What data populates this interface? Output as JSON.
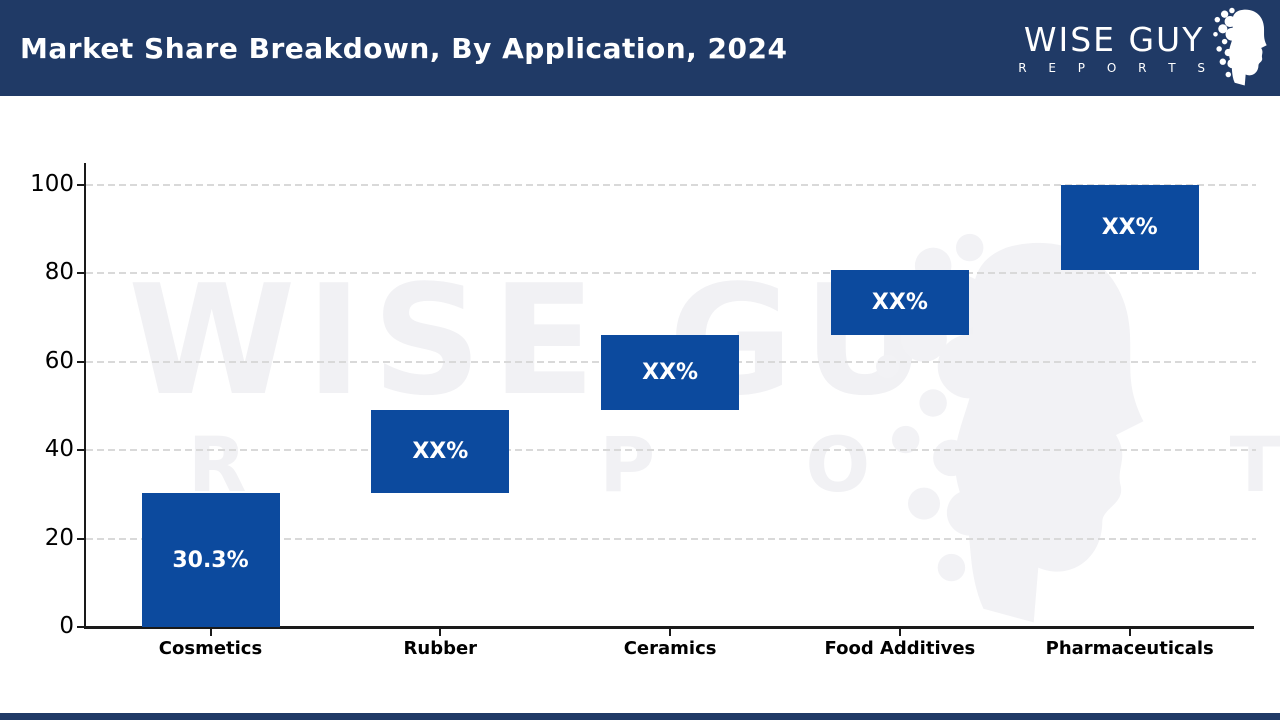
{
  "header": {
    "title": "Market Share Breakdown, By Application, 2024",
    "background_color": "#203a66",
    "logo": {
      "name": "WISE GUY",
      "tagline": "R E P O R T S",
      "icon": "dotted-face-profile-icon"
    }
  },
  "chart_data": {
    "type": "bar",
    "variant": "waterfall",
    "title": "Market Share Breakdown, By Application, 2024",
    "categories": [
      "Cosmetics",
      "Rubber",
      "Ceramics",
      "Food Additives",
      "Pharmaceuticals"
    ],
    "series": [
      {
        "name": "Market Share",
        "segments": [
          {
            "category": "Cosmetics",
            "start": 0,
            "end": 30.3,
            "label": "30.3%"
          },
          {
            "category": "Rubber",
            "start": 30.3,
            "end": 49.0,
            "label": "XX%"
          },
          {
            "category": "Ceramics",
            "start": 49.0,
            "end": 66.0,
            "label": "XX%"
          },
          {
            "category": "Food Additives",
            "start": 66.0,
            "end": 80.7,
            "label": "XX%"
          },
          {
            "category": "Pharmaceuticals",
            "start": 80.7,
            "end": 100.0,
            "label": "XX%"
          }
        ]
      }
    ],
    "xlabel": "",
    "ylabel": "",
    "ylim": [
      0,
      105
    ],
    "yticks": [
      0,
      20,
      40,
      60,
      80,
      100
    ],
    "grid": "horizontal-dashed",
    "legend": "none",
    "bar_color": "#0c4a9e",
    "bar_label_color": "#ffffff",
    "axis_color": "#1a1a1a",
    "gridline_color": "#d9d9d9"
  },
  "watermark": {
    "line1": "WISE GUY",
    "line2": "R E P O R T S"
  },
  "footer": {
    "color": "#203a66"
  }
}
